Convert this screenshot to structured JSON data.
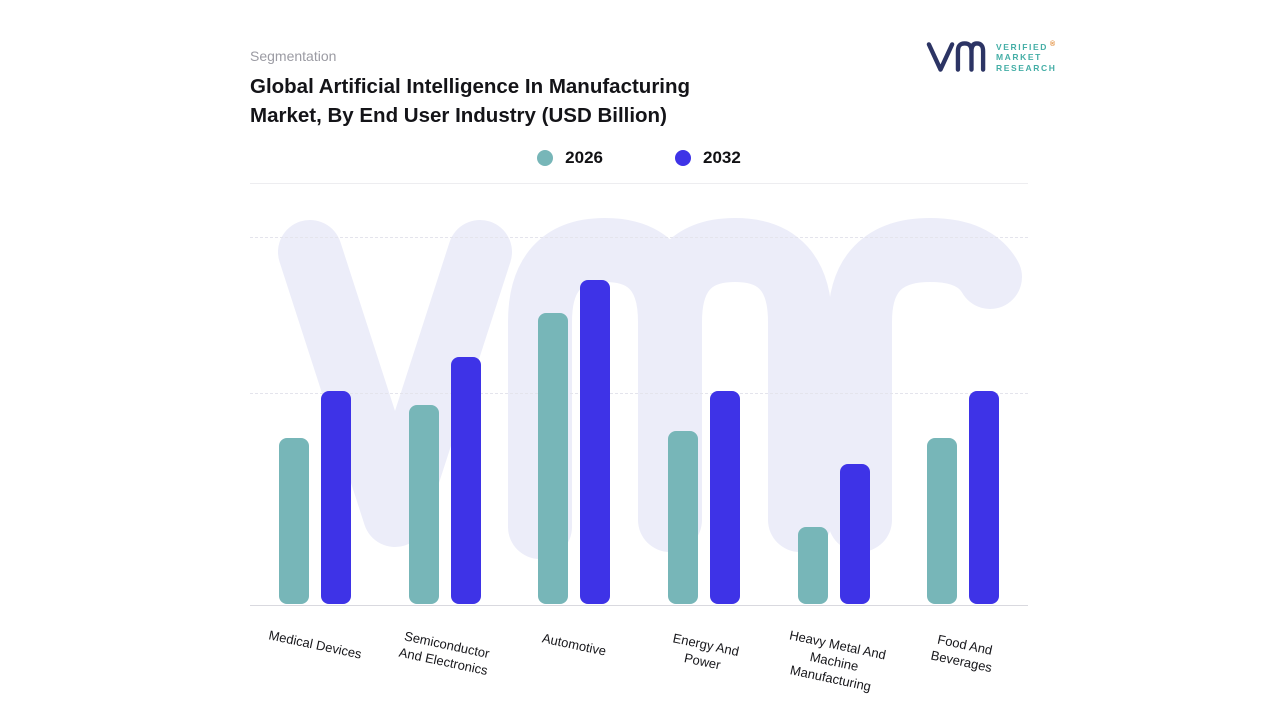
{
  "page": {
    "eyebrow": "Segmentation",
    "title_lines": [
      "Global Artificial Intelligence In Manufacturing",
      "Market, By End User Industry (USD Billion)"
    ]
  },
  "logo": {
    "lines": [
      "VERIFIED",
      "MARKET",
      "RESEARCH"
    ],
    "registered": "®",
    "mark": "vmr-monogram",
    "mark_color": "#2c3464",
    "text_color": "#44aea6"
  },
  "watermark": {
    "text": "vmr",
    "color": "#ecedf9"
  },
  "chart_data": {
    "type": "bar",
    "title": "Global Artificial Intelligence In Manufacturing Market, By End User Industry (USD Billion)",
    "categories": [
      "Medical Devices",
      "Semiconductor And Electronics",
      "Automotive",
      "Energy And Power",
      "Heavy Metal And Machine Manufacturing",
      "Food And Beverages"
    ],
    "category_lines": [
      [
        "Medical Devices"
      ],
      [
        "Semiconductor",
        "And Electronics"
      ],
      [
        "Automotive"
      ],
      [
        "Energy And",
        "Power"
      ],
      [
        "Heavy Metal And",
        "Machine",
        "Manufacturing"
      ],
      [
        "Food And",
        "Beverages"
      ]
    ],
    "series": [
      {
        "name": "2026",
        "color": "#77b6b8",
        "values": [
          45,
          54,
          79,
          47,
          21,
          45
        ]
      },
      {
        "name": "2032",
        "color": "#3e33e7",
        "values": [
          58,
          67,
          88,
          58,
          38,
          58
        ]
      }
    ],
    "xlabel": "",
    "ylabel": "",
    "ylim": [
      0,
      100
    ],
    "value_note": "No numeric axis tick labels are shown; values are relative bar heights as % of the top gridline.",
    "grid": "dashed horizontal gridlines, solid baseline",
    "legend_position": "top-center"
  }
}
